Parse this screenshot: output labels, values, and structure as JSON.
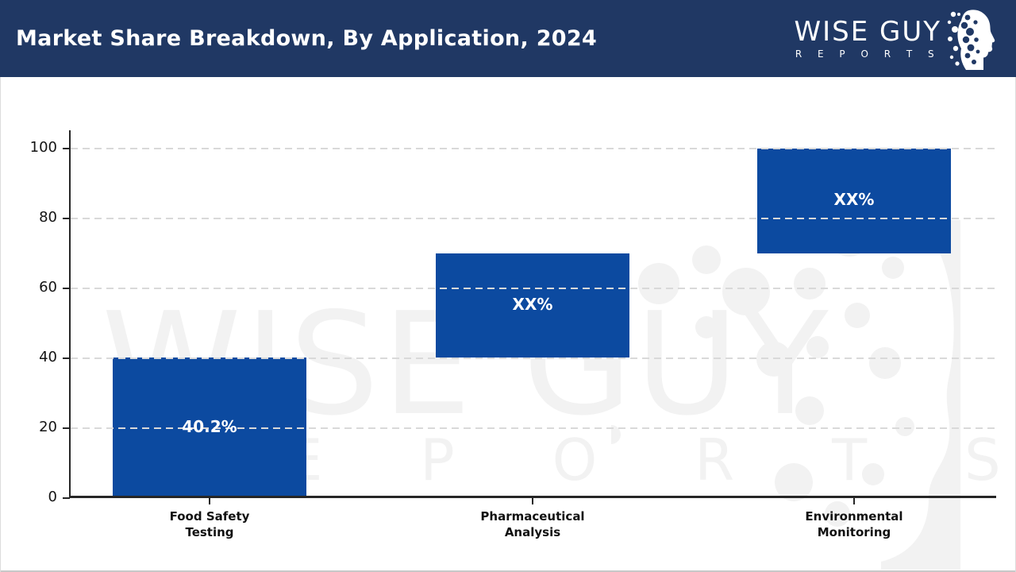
{
  "header": {
    "title": "Market Share Breakdown, By Application, 2024",
    "logo": {
      "line1": "WISE GUY",
      "line2": "R E P O R T S"
    }
  },
  "watermark": {
    "line1": "WISE GUY",
    "line2": "R E P O R T S"
  },
  "colors": {
    "header_bg": "#203864",
    "bar": "#0c4aa0",
    "grid": "#d9d9d9",
    "axis": "#262626",
    "watermark": "#f2f2f2",
    "bar_label": "#ffffff"
  },
  "chart_data": {
    "type": "bar",
    "variant": "floating-waterfall",
    "title": "Market Share Breakdown, By Application, 2024",
    "categories": [
      "Food Safety Testing",
      "Pharmaceutical Analysis",
      "Environmental Monitoring"
    ],
    "category_label_lines": [
      [
        "Food Safety",
        "Testing"
      ],
      [
        "Pharmaceutical",
        "Analysis"
      ],
      [
        "Environmental",
        "Monitoring"
      ]
    ],
    "bars": [
      {
        "category": "Food Safety Testing",
        "start": 0,
        "end": 40.2,
        "label": "40.2%"
      },
      {
        "category": "Pharmaceutical Analysis",
        "start": 40.2,
        "end": 70,
        "label": "XX%"
      },
      {
        "category": "Environmental Monitoring",
        "start": 70,
        "end": 100,
        "label": "XX%"
      }
    ],
    "xlabel": "",
    "ylabel": "",
    "ylim": [
      0,
      100
    ],
    "yticks": [
      0,
      20,
      40,
      60,
      80,
      100
    ],
    "grid": {
      "horizontal": true,
      "style": "dashed",
      "color": "#d9d9d9"
    },
    "legend": "none",
    "bar_color": "#0c4aa0",
    "bar_label_color": "#ffffff"
  }
}
